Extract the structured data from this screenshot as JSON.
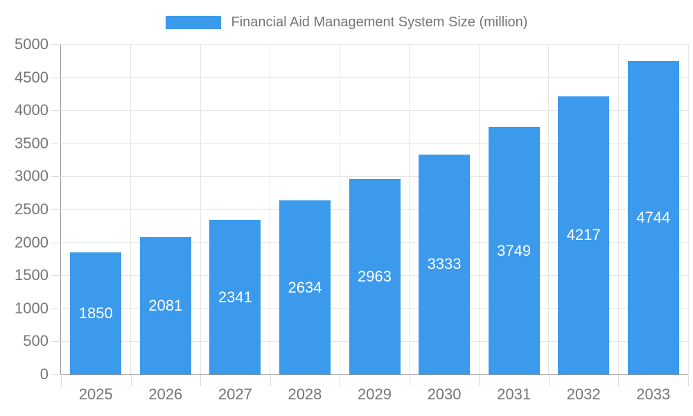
{
  "legend": {
    "label": "Financial Aid Management System Size (million)",
    "swatch_color": "#3b9aec"
  },
  "colors": {
    "bar": "#3b9aec",
    "axis_text": "#757575",
    "grid_line": "#e6e6e6",
    "axis_line": "#999999",
    "value_label": "#ffffff"
  },
  "chart_data": {
    "type": "bar",
    "title": "Financial Aid Management System Size (million)",
    "categories": [
      "2025",
      "2026",
      "2027",
      "2028",
      "2029",
      "2030",
      "2031",
      "2032",
      "2033"
    ],
    "values": [
      1850,
      2081,
      2341,
      2634,
      2963,
      3333,
      3749,
      4217,
      4744
    ],
    "xlabel": "",
    "ylabel": "",
    "ylim": [
      0,
      5000
    ],
    "ytick_step": 500,
    "ytick_labels": [
      "0",
      "500",
      "1000",
      "1500",
      "2000",
      "2500",
      "3000",
      "3500",
      "4000",
      "4500",
      "5000"
    ],
    "grid": true,
    "value_labels_shown": true,
    "legend_position": "top"
  }
}
